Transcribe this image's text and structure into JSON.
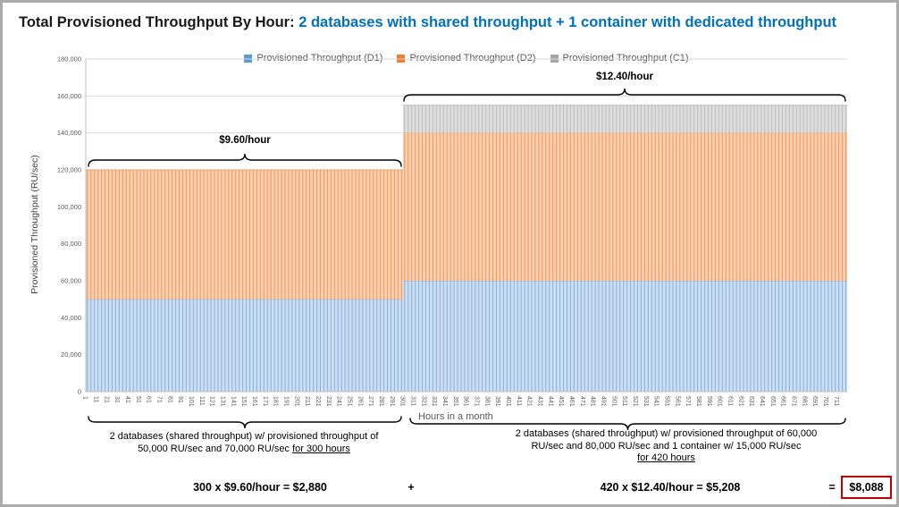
{
  "title": {
    "prefix": "Total Provisioned Throughput By Hour: ",
    "highlight": "2 databases with shared throughput + 1 container with dedicated throughput"
  },
  "colors": {
    "title_highlight": "#0070c0",
    "axis_text": "#595959",
    "gridline": "#d9d9d9",
    "axis_line": "#bfbfbf",
    "brace": "#000000",
    "total_box_border": "#c00000"
  },
  "legend": [
    {
      "label": "Provisioned Throughput (D1)",
      "color": "#5b9bd5"
    },
    {
      "label": "Provisioned Throughput (D2)",
      "color": "#ed7d31"
    },
    {
      "label": "Provisioned Throughput (C1)",
      "color": "#a5a5a5"
    }
  ],
  "chart_data": {
    "type": "bar",
    "stacked": true,
    "title": "Total Provisioned Throughput By Hour",
    "xlabel": "Hours in a month",
    "ylabel": "Provisioned Throughput (RU/sec)",
    "ylim": [
      0,
      180000
    ],
    "y_tick_step": 20000,
    "x_ticks": {
      "start": 1,
      "step": 10,
      "end": 711
    },
    "hours_total": 720,
    "grid": true,
    "legend_position": "top",
    "series": [
      {
        "key": "D1",
        "name": "Provisioned Throughput (D1)",
        "legend_color": "#5b9bd5",
        "fill": "#cddff2",
        "stripe": "#8db4dc"
      },
      {
        "key": "D2",
        "name": "Provisioned Throughput (D2)",
        "legend_color": "#ed7d31",
        "fill": "#fad0b3",
        "stripe": "#f09d60"
      },
      {
        "key": "C1",
        "name": "Provisioned Throughput (C1)",
        "legend_color": "#a5a5a5",
        "fill": "#dedede",
        "stripe": "#c0c0c0"
      }
    ],
    "segments": [
      {
        "hours_from": 1,
        "hours_to": 300,
        "values": {
          "D1": 50000,
          "D2": 70000,
          "C1": 0
        },
        "total": 120000,
        "rate_label": "$9.60/hour"
      },
      {
        "hours_from": 301,
        "hours_to": 720,
        "values": {
          "D1": 60000,
          "D2": 80000,
          "C1": 15000
        },
        "total": 155000,
        "rate_label": "$12.40/hour"
      }
    ]
  },
  "annotations": {
    "brace_left_label": "$9.60/hour",
    "brace_right_label": "$12.40/hour",
    "left_note_line1": "2 databases (shared throughput) w/ provisioned throughput of",
    "left_note_line2": "50,000 RU/sec and 70,000 RU/sec ",
    "left_note_underline": "for 300 hours",
    "right_note_line1": "2 databases (shared throughput) w/ provisioned throughput of 60,000",
    "right_note_line2": "RU/sec and 80,000 RU/sec and 1 container w/ 15,000 RU/sec",
    "right_note_underline": "for 420 hours",
    "math_left": "300 x $9.60/hour = $2,880",
    "plus": "+",
    "math_right": "420 x $12.40/hour = $5,208",
    "equals": "=",
    "total": "$8,088"
  }
}
